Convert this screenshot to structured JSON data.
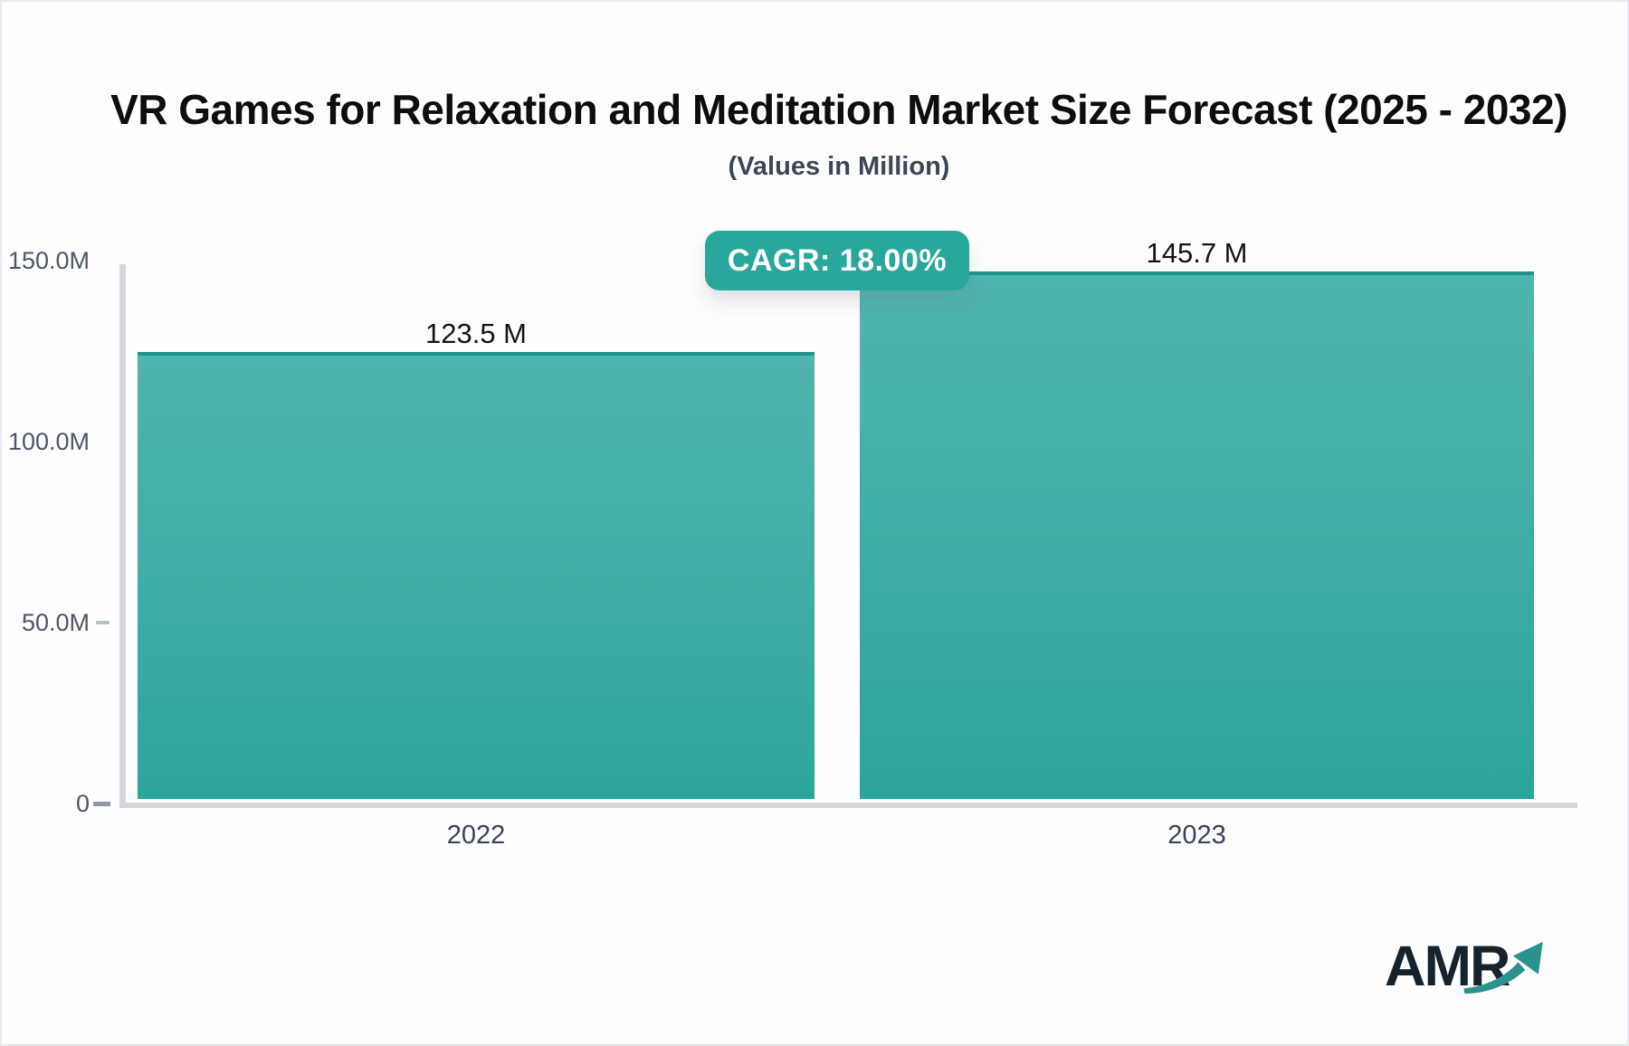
{
  "chart_data": {
    "type": "bar",
    "title": "VR Games for Relaxation and Meditation Market Size Forecast (2025 - 2032)",
    "subtitle": "(Values in Million)",
    "badge_label": "CAGR: 18.00%",
    "categories": [
      "2022",
      "2023"
    ],
    "values": [
      123.5,
      145.7
    ],
    "value_labels": [
      "123.5 M",
      "145.7 M"
    ],
    "unit": "Million",
    "ylim": [
      0,
      150
    ],
    "yticks": [
      {
        "label": "150.0M",
        "value": 150
      },
      {
        "label": "100.0M",
        "value": 100
      },
      {
        "label": "50.0M",
        "value": 50
      },
      {
        "label": "0",
        "value": 0
      }
    ],
    "grid": "off",
    "legend": "none",
    "cagr_percent": 18.0
  },
  "branding": {
    "logo_text": "AMR",
    "logo_arrow_icon": "growth-arrow-icon"
  },
  "colors": {
    "bar_gradient_top": "#50b5ac",
    "bar_gradient_bottom": "#2ba69a",
    "bar_border_top": "#1f928a",
    "badge_background": "#2aa79b",
    "badge_text": "#ffffff",
    "axis_line": "#d4d7dd",
    "axis_label": "#4d5768",
    "title_text": "#0c0d0f",
    "value_label_text": "#111418",
    "logo_text_color": "#16232d",
    "logo_arrow_color": "#2b938c"
  }
}
